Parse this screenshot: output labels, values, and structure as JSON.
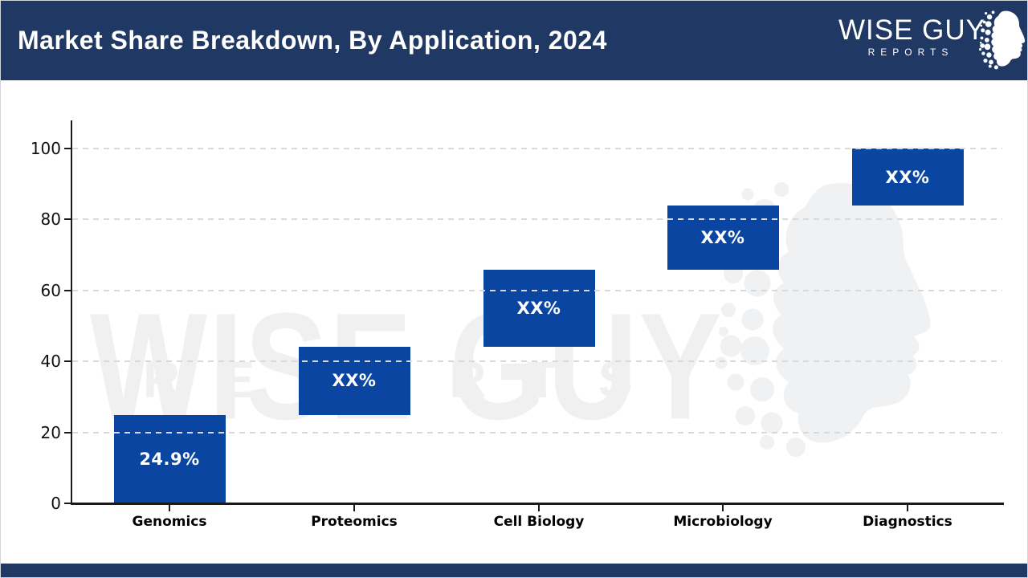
{
  "header": {
    "title": "Market Share Breakdown, By Application, 2024",
    "logo": {
      "line1": "WISE GUY",
      "line2": "REPORTS"
    },
    "bg_color": "#203864"
  },
  "watermark": {
    "line1": "WISE GUY",
    "line2": "REPORTS"
  },
  "chart_data": {
    "type": "bar",
    "subtype": "waterfall",
    "title": "Market Share Breakdown, By Application, 2024",
    "categories": [
      "Genomics",
      "Proteomics",
      "Cell Biology",
      "Microbiology",
      "Diagnostics"
    ],
    "segments": [
      {
        "category": "Genomics",
        "start": 0,
        "end": 24.9,
        "label": "24.9%"
      },
      {
        "category": "Proteomics",
        "start": 24.9,
        "end": 44.2,
        "label": "XX%"
      },
      {
        "category": "Cell Biology",
        "start": 44.2,
        "end": 65.9,
        "label": "XX%"
      },
      {
        "category": "Microbiology",
        "start": 65.9,
        "end": 83.9,
        "label": "XX%"
      },
      {
        "category": "Diagnostics",
        "start": 83.9,
        "end": 100,
        "label": "XX%"
      }
    ],
    "yticks": [
      0,
      20,
      40,
      60,
      80,
      100
    ],
    "ylim": [
      0,
      105
    ],
    "xlabel": "",
    "ylabel": "",
    "bar_color": "#0a46a1",
    "grid": "horizontal-dashed",
    "legend": "none"
  }
}
